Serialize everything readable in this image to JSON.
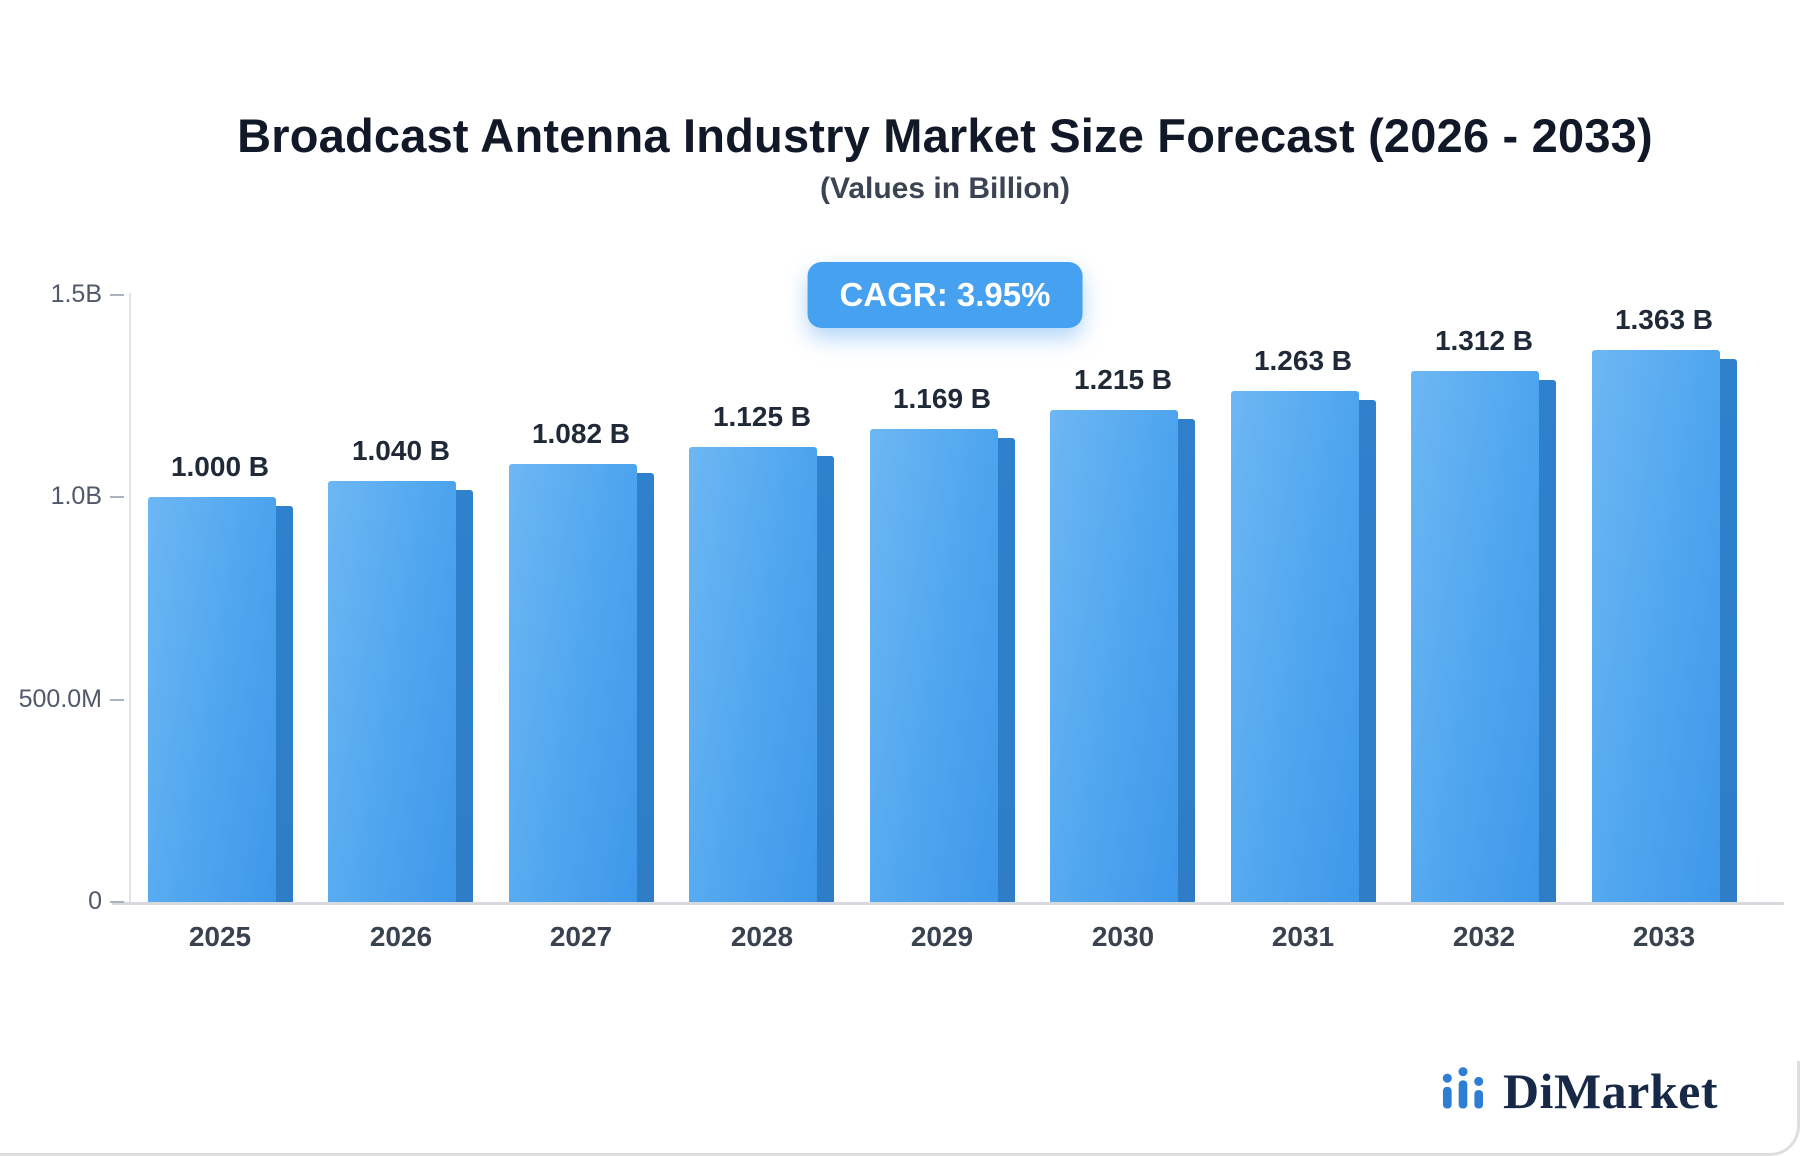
{
  "chart": {
    "title": "Broadcast Antenna Industry Market Size Forecast (2026 - 2033)",
    "subtitle": "(Values in Billion)",
    "cagr_label": "CAGR: 3.95%"
  },
  "chart_data": {
    "type": "bar",
    "title": "Broadcast Antenna Industry Market Size Forecast (2026 - 2033)",
    "subtitle": "(Values in Billion)",
    "categories": [
      "2025",
      "2026",
      "2027",
      "2028",
      "2029",
      "2030",
      "2031",
      "2032",
      "2033"
    ],
    "values": [
      1.0,
      1.04,
      1.082,
      1.125,
      1.169,
      1.215,
      1.263,
      1.312,
      1.363
    ],
    "value_labels": [
      "1.000 B",
      "1.040 B",
      "1.082 B",
      "1.125 B",
      "1.169 B",
      "1.215 B",
      "1.263 B",
      "1.312 B",
      "1.363 B"
    ],
    "unit": "Billion",
    "cagr": "3.95%",
    "xlabel": "",
    "ylabel": "",
    "ylim": [
      0,
      1.5
    ],
    "grid": false,
    "legend": "none",
    "y_ticks": [
      {
        "label": "1.5B",
        "value": 1.5
      },
      {
        "label": "1.0B",
        "value": 1.0
      },
      {
        "label": "500.0M",
        "value": 0.5
      },
      {
        "label": "0",
        "value": 0
      }
    ],
    "bar_color_light": "#6db7f3",
    "bar_color_dark": "#3e97e9",
    "bar_side_color": "#2e7dc6"
  },
  "badge": {
    "background": "#47a1f1",
    "text_color": "#ffffff"
  },
  "logo": {
    "text": "DiMarket",
    "icon": "bar-chart-icon",
    "text_color": "#182947",
    "icon_color": "#2e7fd4"
  }
}
